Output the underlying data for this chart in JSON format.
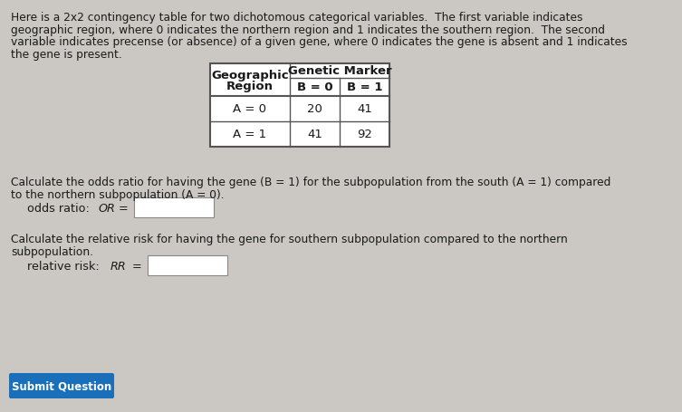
{
  "bg_color": "#cbc7c3",
  "text_color": "#1a1a1a",
  "intro_text_lines": [
    "Here is a 2x2 contingency table for two dichotomous categorical variables.  The first variable indicates",
    "geographic region, where 0 indicates the northern region and 1 indicates the southern region.  The second",
    "variable indicates precense (or absence) of a given gene, where 0 indicates the gene is absent and 1 indicates",
    "the gene is present."
  ],
  "table_header_col_line1": "Geographic",
  "table_header_col_line2": "Region",
  "table_header_span": "Genetic Marker",
  "table_col1_header": "B = 0",
  "table_col2_header": "B = 1",
  "table_row1_label": "A = 0",
  "table_row2_label": "A = 1",
  "table_data": [
    [
      20,
      41
    ],
    [
      41,
      92
    ]
  ],
  "q1_text_lines": [
    "Calculate the odds ratio for having the gene (B = 1) for the subpopulation from the south (A = 1) compared",
    "to the northern subpopulation (A = 0)."
  ],
  "q1_label_italic": "odds ratio:  ",
  "q1_label_math": "OR",
  "q2_text_lines": [
    "Calculate the relative risk for having the gene for southern subpopulation compared to the northern",
    "subpopulation."
  ],
  "q2_label_italic": "relative risk:  ",
  "q2_label_math": "RR",
  "button_text": "Submit Question",
  "button_color": "#1a6fba",
  "button_text_color": "#ffffff",
  "font_size_intro": 8.8,
  "font_size_table_header": 9.5,
  "font_size_table_data": 9.5,
  "font_size_q": 8.8,
  "font_size_label": 9.2
}
